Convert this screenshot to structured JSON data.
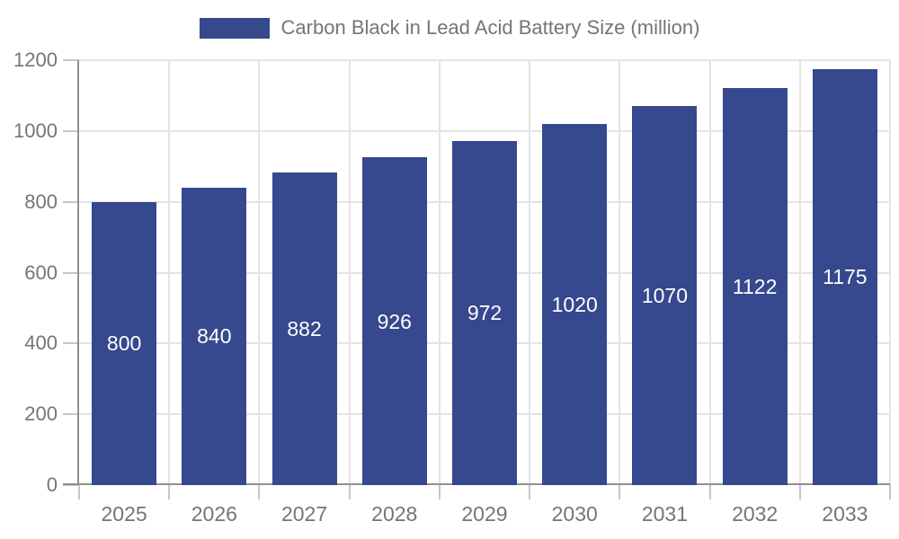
{
  "chart_data": {
    "type": "bar",
    "title": "Carbon Black in Lead Acid Battery Size (million)",
    "categories": [
      "2025",
      "2026",
      "2027",
      "2028",
      "2029",
      "2030",
      "2031",
      "2032",
      "2033"
    ],
    "values": [
      800,
      840,
      882,
      926,
      972,
      1020,
      1070,
      1122,
      1175
    ],
    "xlabel": "",
    "ylabel": "",
    "ylim": [
      0,
      1200
    ],
    "yticks": [
      0,
      200,
      400,
      600,
      800,
      1000,
      1200
    ],
    "grid": true,
    "legend_position": "top-center",
    "value_label_position": "inside-center",
    "colors": {
      "bar": "#36488e",
      "bar_label": "#ffffff",
      "axis_line": "#8f8f8f",
      "gridline": "#e4e4e4",
      "tick": "#c6c6c6",
      "tick_label": "#757575",
      "legend_text": "#757575",
      "background": "#ffffff"
    }
  }
}
